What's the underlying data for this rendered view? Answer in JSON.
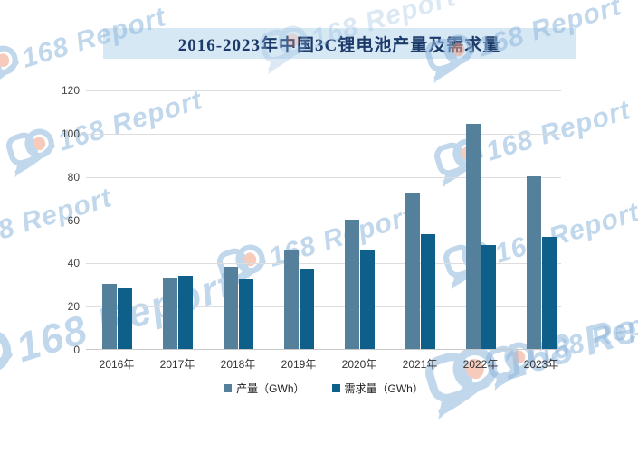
{
  "title": {
    "text": "2016-2023年中国3C锂电池产量及需求量",
    "bg_color": "#d7e8f5",
    "text_color": "#1c3a6a"
  },
  "watermark": {
    "text": "168 Report",
    "logo": "168report-logo-icon",
    "color": "#8fb8dd",
    "accent_color": "#f0a287"
  },
  "chart_data": {
    "type": "bar",
    "title": "2016-2023年中国3C锂电池产量及需求量",
    "categories": [
      "2016年",
      "2017年",
      "2018年",
      "2019年",
      "2020年",
      "2021年",
      "2022年",
      "2023年"
    ],
    "series": [
      {
        "name": "产量（GWh）",
        "color": "#55809b",
        "values": [
          30,
          33,
          38,
          46,
          60,
          72,
          104,
          80
        ]
      },
      {
        "name": "需求量（GWh）",
        "color": "#0e5f89",
        "values": [
          28,
          34,
          32,
          37,
          46,
          53,
          48,
          52
        ]
      }
    ],
    "xlabel": "",
    "ylabel": "",
    "ylim": [
      0,
      120
    ],
    "yticks": [
      0,
      20,
      40,
      60,
      80,
      100,
      120
    ],
    "grid": true,
    "legend_position": "bottom",
    "unit": "GWh"
  }
}
